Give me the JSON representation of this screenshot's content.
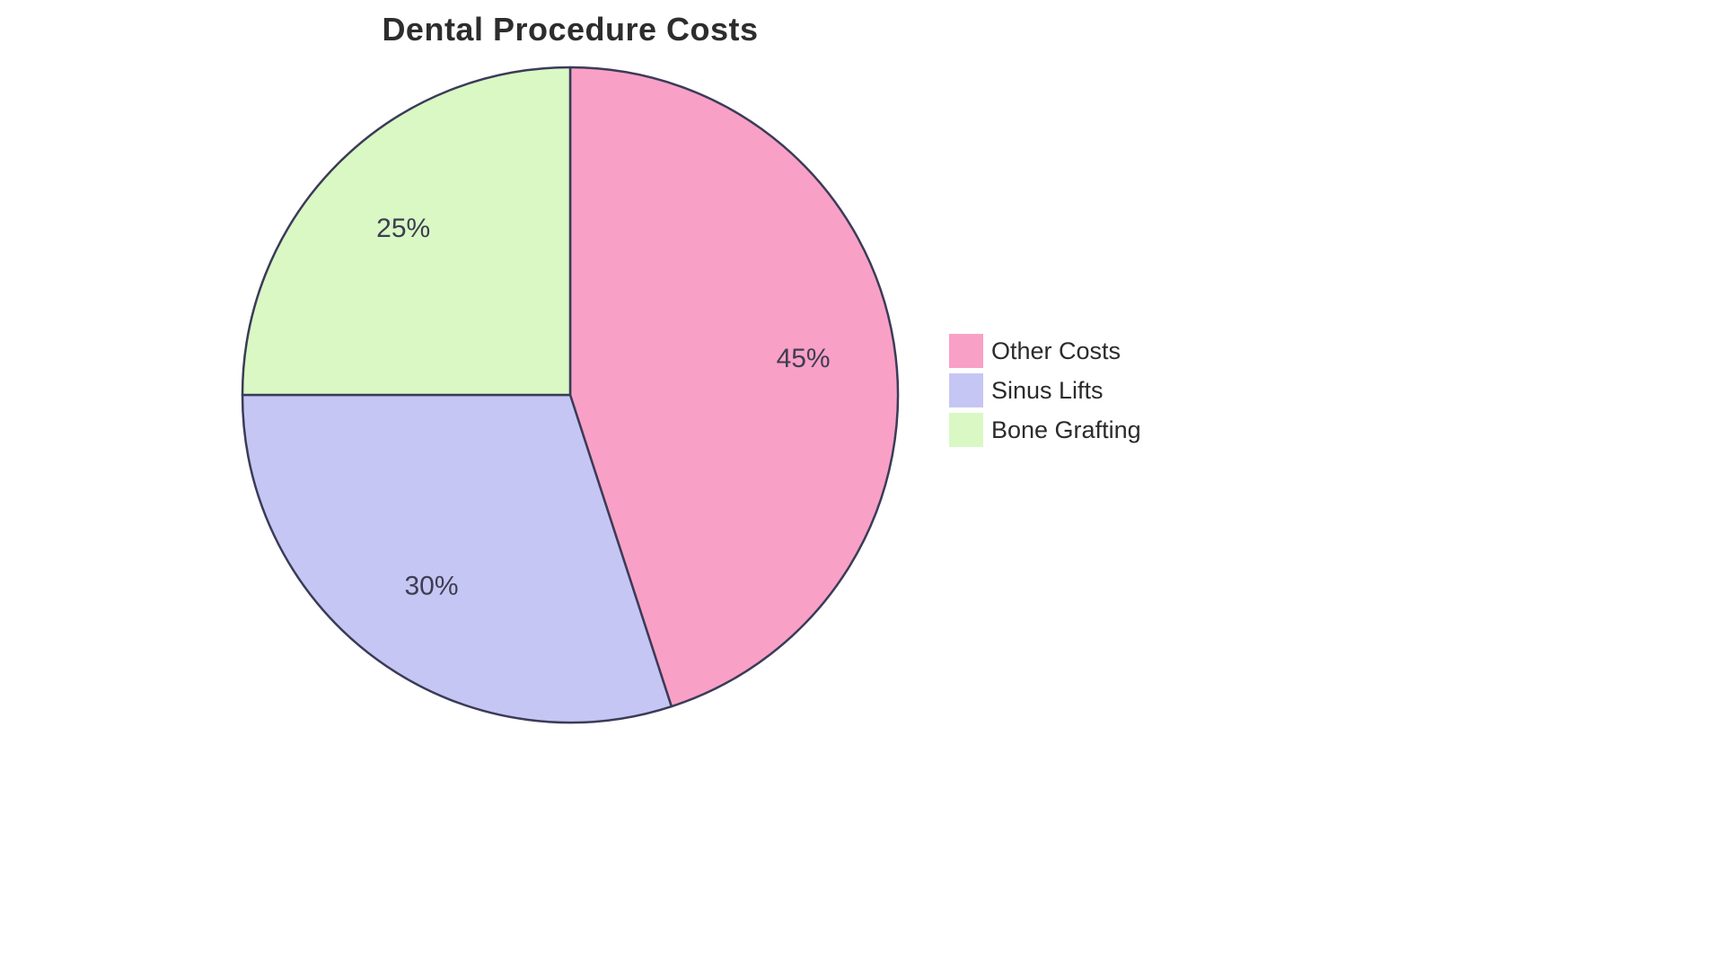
{
  "title": "Dental Procedure Costs",
  "chart_data": {
    "type": "pie",
    "title": "Dental Procedure Costs",
    "direction": "clockwise",
    "start_angle_deg": 0,
    "legend_position": "right",
    "grid": false,
    "background_color": "#ffffff",
    "stroke_color": "#3b3b58",
    "label_color": "#3d3d52",
    "title_color": "#2d2d2d",
    "slices": [
      {
        "label": "Other Costs",
        "value": 45,
        "percent_label": "45%",
        "color": "#f9a0c6"
      },
      {
        "label": "Sinus Lifts",
        "value": 30,
        "percent_label": "30%",
        "color": "#c6c6f4"
      },
      {
        "label": "Bone Grafting",
        "value": 25,
        "percent_label": "25%",
        "color": "#d9f8c4"
      }
    ]
  }
}
